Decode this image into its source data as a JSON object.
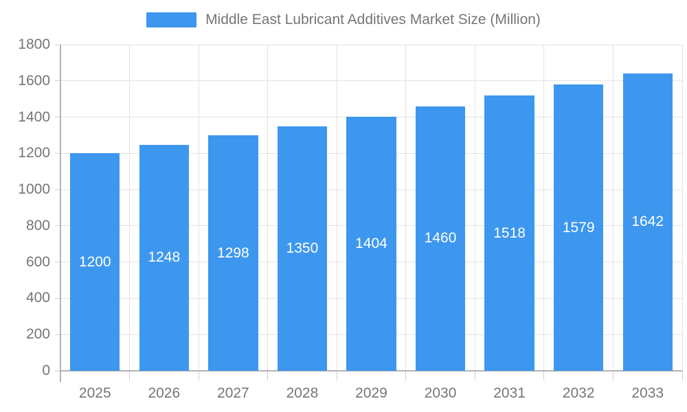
{
  "legend": {
    "label": "Middle East Lubricant Additives Market Size (Million)"
  },
  "chart_data": {
    "type": "bar",
    "title": "Middle East Lubricant Additives Market Size (Million)",
    "categories": [
      "2025",
      "2026",
      "2027",
      "2028",
      "2029",
      "2030",
      "2031",
      "2032",
      "2033"
    ],
    "values": [
      1200,
      1248,
      1298,
      1350,
      1404,
      1460,
      1518,
      1579,
      1642
    ],
    "xlabel": "",
    "ylabel": "",
    "ylim": [
      0,
      1800
    ],
    "ytick_step": 200,
    "grid": true,
    "legend_position": "top",
    "bar_color": "#3d97ee",
    "value_label_color": "#ffffff",
    "axis_color": "#b2b2b2",
    "grid_color": "#e3e3e3",
    "tick_label_color": "#757575"
  }
}
